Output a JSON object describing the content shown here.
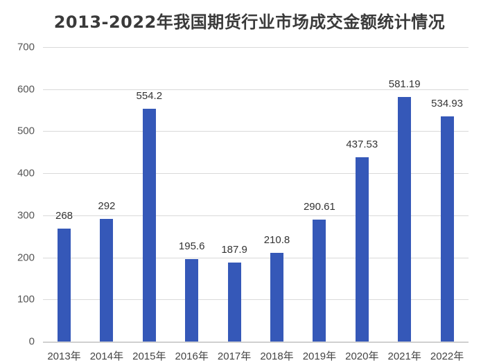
{
  "chart_data": {
    "type": "bar",
    "title": "2013-2022年我国期货行业市场成交金额统计情况",
    "xlabel": "",
    "ylabel": "",
    "categories": [
      "2013年",
      "2014年",
      "2015年",
      "2016年",
      "2017年",
      "2018年",
      "2019年",
      "2020年",
      "2021年",
      "2022年"
    ],
    "values": [
      268,
      292,
      554.2,
      195.6,
      187.9,
      210.8,
      290.61,
      437.53,
      581.19,
      534.93
    ],
    "value_labels": [
      "268",
      "292",
      "554.2",
      "195.6",
      "187.9",
      "210.8",
      "290.61",
      "437.53",
      "581.19",
      "534.93"
    ],
    "ylim": [
      0,
      700
    ],
    "yticks": [
      "0",
      "100",
      "200",
      "300",
      "400",
      "500",
      "600",
      "700"
    ],
    "grid": true,
    "legend": null,
    "bar_color": "#3558b8"
  },
  "header": {
    "title": "2013-2022年我国期货行业市场成交金额统计情况"
  }
}
